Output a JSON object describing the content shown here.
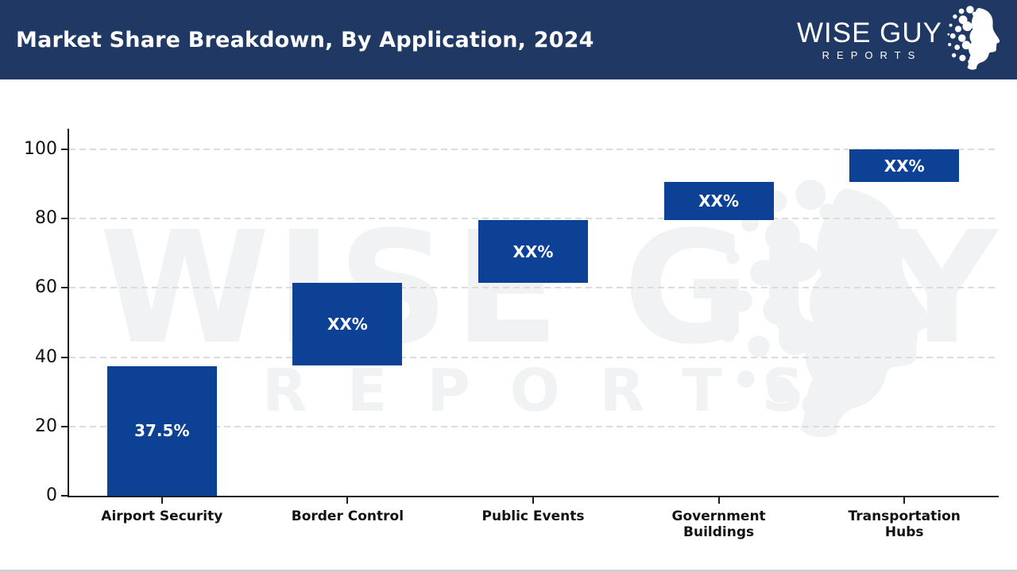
{
  "header": {
    "title": "Market Share Breakdown, By Application, 2024",
    "logo": {
      "brand": "WISE GUY",
      "sub": "REPORTS"
    }
  },
  "watermark": {
    "brand": "WISE GUY",
    "sub": "REPORTS"
  },
  "colors": {
    "header_bg": "#1f3864",
    "bar": "#0d4195",
    "bar_label_text": "#ffffff",
    "gridline": "#dcdcdc",
    "axis": "#1c1c1c",
    "watermark": "#f1f2f4"
  },
  "chart_data": {
    "type": "bar",
    "subtype": "waterfall",
    "title": "Market Share Breakdown, By Application, 2024",
    "categories": [
      "Airport Security",
      "Border Control",
      "Public Events",
      "Government Buildings",
      "Transportation Hubs"
    ],
    "category_labels": [
      "Airport Security",
      "Border Control",
      "Public Events",
      "Government\nBuildings",
      "Transportation\nHubs"
    ],
    "segments": [
      {
        "category": "Airport Security",
        "start": 0,
        "end": 37.5,
        "label": "37.5%"
      },
      {
        "category": "Border Control",
        "start": 37.5,
        "end": 61.5,
        "label": "XX%"
      },
      {
        "category": "Public Events",
        "start": 61.5,
        "end": 79.5,
        "label": "XX%"
      },
      {
        "category": "Government Buildings",
        "start": 79.5,
        "end": 90.5,
        "label": "XX%"
      },
      {
        "category": "Transportation Hubs",
        "start": 90.5,
        "end": 100,
        "label": "XX%"
      }
    ],
    "ylim": [
      0,
      100
    ],
    "yticks": [
      0,
      20,
      40,
      60,
      80,
      100
    ],
    "grid": "horizontal-dashed",
    "legend": "none",
    "bar_color": "#0d4195"
  }
}
